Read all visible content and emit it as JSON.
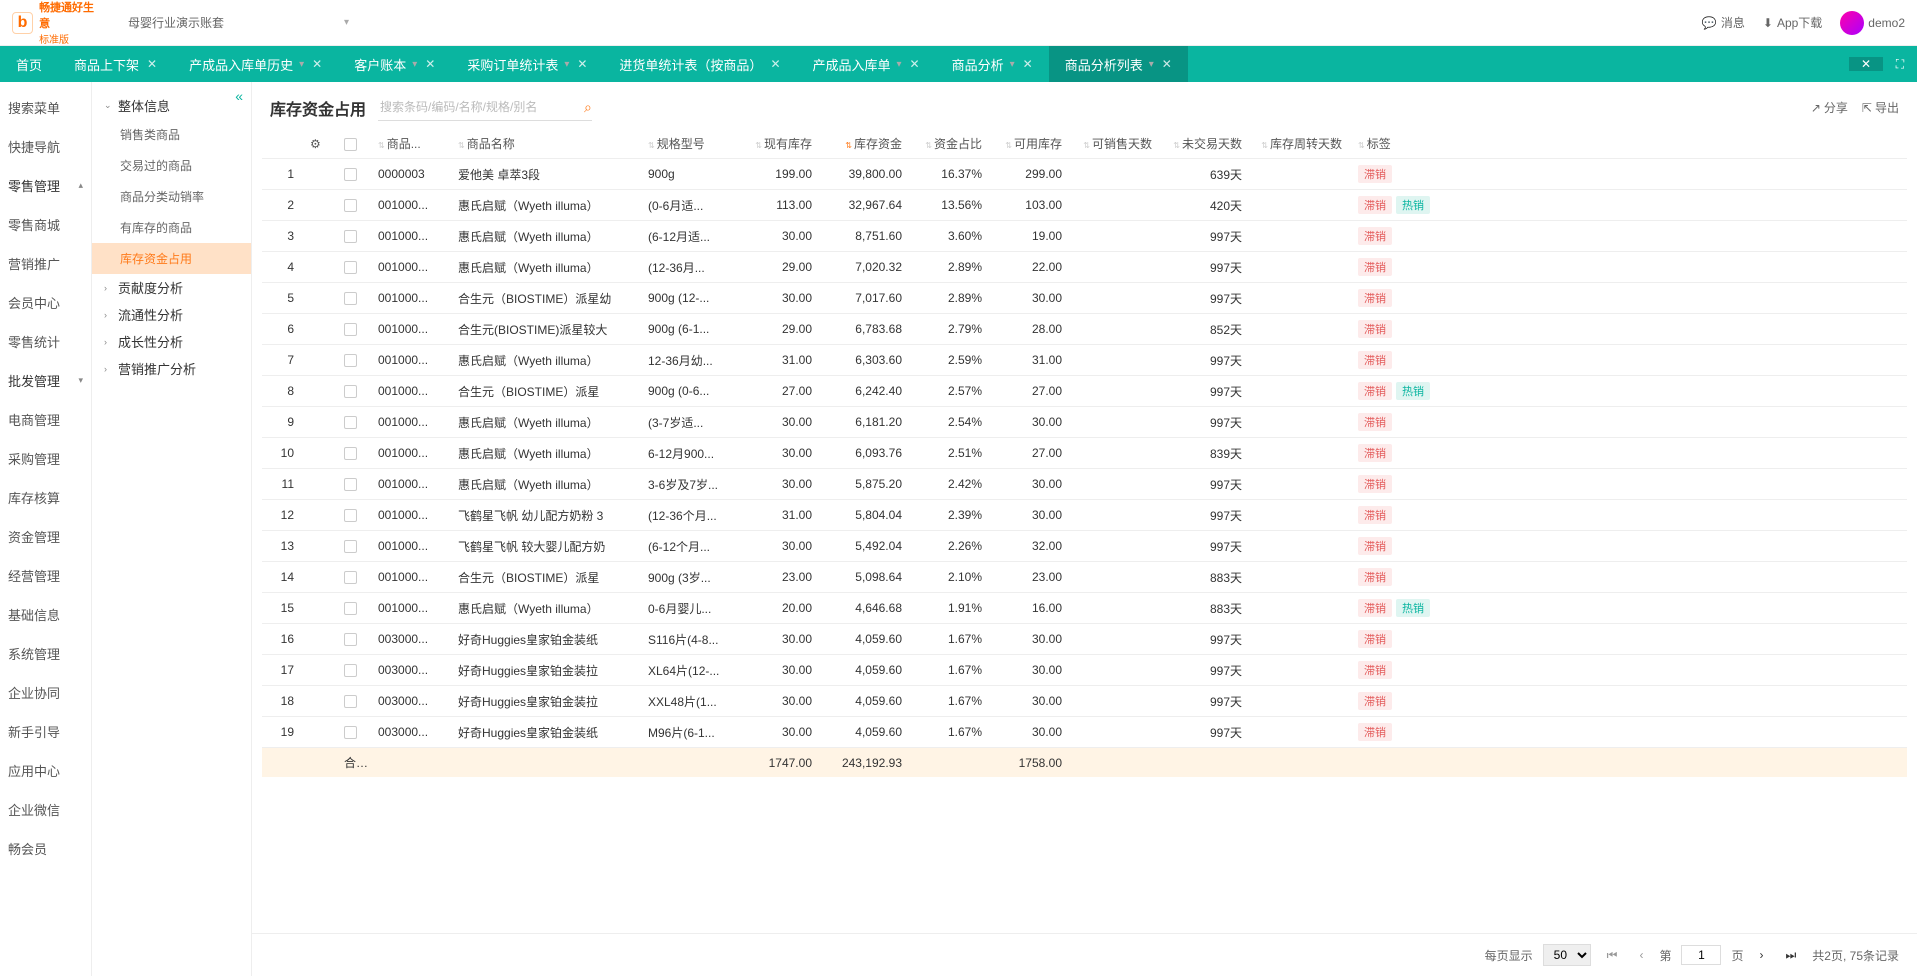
{
  "header": {
    "logo_text": "畅捷通好生意",
    "logo_sub": "标准版",
    "account": "母婴行业演示账套",
    "msg": "消息",
    "download": "App下载",
    "user": "demo2"
  },
  "tabs": [
    {
      "label": "首页",
      "closable": false
    },
    {
      "label": "商品上下架",
      "closable": true
    },
    {
      "label": "产成品入库单历史",
      "closable": true,
      "caret": true
    },
    {
      "label": "客户账本",
      "closable": true,
      "caret": true
    },
    {
      "label": "采购订单统计表",
      "closable": true,
      "caret": true
    },
    {
      "label": "进货单统计表（按商品）",
      "closable": true
    },
    {
      "label": "产成品入库单",
      "closable": true,
      "caret": true
    },
    {
      "label": "商品分析",
      "closable": true,
      "caret": true
    },
    {
      "label": "商品分析列表",
      "closable": true,
      "caret": true,
      "active": true
    }
  ],
  "leftnav": [
    {
      "label": "搜索菜单"
    },
    {
      "label": "快捷导航"
    },
    {
      "label": "零售管理",
      "arrow": "▴"
    },
    {
      "label": "零售商城"
    },
    {
      "label": "营销推广"
    },
    {
      "label": "会员中心"
    },
    {
      "label": "零售统计"
    },
    {
      "label": "批发管理",
      "arrow": "▾"
    },
    {
      "label": "电商管理"
    },
    {
      "label": "采购管理"
    },
    {
      "label": "库存核算"
    },
    {
      "label": "资金管理"
    },
    {
      "label": "经营管理"
    },
    {
      "label": "基础信息"
    },
    {
      "label": "系统管理"
    },
    {
      "label": "企业协同"
    },
    {
      "label": "新手引导"
    },
    {
      "label": "应用中心"
    },
    {
      "label": "企业微信"
    },
    {
      "label": "畅会员"
    }
  ],
  "subnav": {
    "groups": [
      {
        "label": "整体信息",
        "open": true,
        "items": [
          {
            "label": "销售类商品"
          },
          {
            "label": "交易过的商品"
          },
          {
            "label": "商品分类动销率"
          },
          {
            "label": "有库存的商品"
          },
          {
            "label": "库存资金占用",
            "active": true
          }
        ]
      },
      {
        "label": "贡献度分析",
        "open": false
      },
      {
        "label": "流通性分析",
        "open": false
      },
      {
        "label": "成长性分析",
        "open": false
      },
      {
        "label": "营销推广分析",
        "open": false
      }
    ]
  },
  "content": {
    "title": "库存资金占用",
    "search_placeholder": "搜索条码/编码/名称/规格/别名",
    "share": "分享",
    "export": "导出"
  },
  "columns": [
    "商品...",
    "商品名称",
    "规格型号",
    "现有库存",
    "库存资金",
    "资金占比",
    "可用库存",
    "可销售天数",
    "未交易天数",
    "库存周转天数",
    "标签"
  ],
  "rows": [
    {
      "idx": 1,
      "code": "0000003",
      "name": "爱他美 卓萃3段",
      "spec": "900g",
      "stock": "199.00",
      "cap": "39,800.00",
      "ratio": "16.37%",
      "avail": "299.00",
      "sell": "",
      "notrade": "639天",
      "turn": "",
      "tags": [
        "滞销"
      ]
    },
    {
      "idx": 2,
      "code": "001000...",
      "name": "惠氏启赋（Wyeth illuma）",
      "spec": "(0-6月适...",
      "stock": "113.00",
      "cap": "32,967.64",
      "ratio": "13.56%",
      "avail": "103.00",
      "sell": "",
      "notrade": "420天",
      "turn": "",
      "tags": [
        "滞销",
        "热销"
      ]
    },
    {
      "idx": 3,
      "code": "001000...",
      "name": "惠氏启赋（Wyeth illuma）",
      "spec": "(6-12月适...",
      "stock": "30.00",
      "cap": "8,751.60",
      "ratio": "3.60%",
      "avail": "19.00",
      "sell": "",
      "notrade": "997天",
      "turn": "",
      "tags": [
        "滞销"
      ]
    },
    {
      "idx": 4,
      "code": "001000...",
      "name": "惠氏启赋（Wyeth illuma）",
      "spec": "(12-36月...",
      "stock": "29.00",
      "cap": "7,020.32",
      "ratio": "2.89%",
      "avail": "22.00",
      "sell": "",
      "notrade": "997天",
      "turn": "",
      "tags": [
        "滞销"
      ]
    },
    {
      "idx": 5,
      "code": "001000...",
      "name": "合生元（BIOSTIME）派星幼",
      "spec": "900g (12-...",
      "stock": "30.00",
      "cap": "7,017.60",
      "ratio": "2.89%",
      "avail": "30.00",
      "sell": "",
      "notrade": "997天",
      "turn": "",
      "tags": [
        "滞销"
      ]
    },
    {
      "idx": 6,
      "code": "001000...",
      "name": "合生元(BIOSTIME)派星较大",
      "spec": "900g (6-1...",
      "stock": "29.00",
      "cap": "6,783.68",
      "ratio": "2.79%",
      "avail": "28.00",
      "sell": "",
      "notrade": "852天",
      "turn": "",
      "tags": [
        "滞销"
      ]
    },
    {
      "idx": 7,
      "code": "001000...",
      "name": "惠氏启赋（Wyeth illuma）",
      "spec": "12-36月幼...",
      "stock": "31.00",
      "cap": "6,303.60",
      "ratio": "2.59%",
      "avail": "31.00",
      "sell": "",
      "notrade": "997天",
      "turn": "",
      "tags": [
        "滞销"
      ]
    },
    {
      "idx": 8,
      "code": "001000...",
      "name": "合生元（BIOSTIME）派星",
      "spec": "900g (0-6...",
      "stock": "27.00",
      "cap": "6,242.40",
      "ratio": "2.57%",
      "avail": "27.00",
      "sell": "",
      "notrade": "997天",
      "turn": "",
      "tags": [
        "滞销",
        "热销"
      ]
    },
    {
      "idx": 9,
      "code": "001000...",
      "name": "惠氏启赋（Wyeth illuma）",
      "spec": "(3-7岁适...",
      "stock": "30.00",
      "cap": "6,181.20",
      "ratio": "2.54%",
      "avail": "30.00",
      "sell": "",
      "notrade": "997天",
      "turn": "",
      "tags": [
        "滞销"
      ]
    },
    {
      "idx": 10,
      "code": "001000...",
      "name": "惠氏启赋（Wyeth illuma）",
      "spec": "6-12月900...",
      "stock": "30.00",
      "cap": "6,093.76",
      "ratio": "2.51%",
      "avail": "27.00",
      "sell": "",
      "notrade": "839天",
      "turn": "",
      "tags": [
        "滞销"
      ]
    },
    {
      "idx": 11,
      "code": "001000...",
      "name": "惠氏启赋（Wyeth illuma）",
      "spec": "3-6岁及7岁...",
      "stock": "30.00",
      "cap": "5,875.20",
      "ratio": "2.42%",
      "avail": "30.00",
      "sell": "",
      "notrade": "997天",
      "turn": "",
      "tags": [
        "滞销"
      ]
    },
    {
      "idx": 12,
      "code": "001000...",
      "name": "飞鹤星飞帆 幼儿配方奶粉 3",
      "spec": "(12-36个月...",
      "stock": "31.00",
      "cap": "5,804.04",
      "ratio": "2.39%",
      "avail": "30.00",
      "sell": "",
      "notrade": "997天",
      "turn": "",
      "tags": [
        "滞销"
      ]
    },
    {
      "idx": 13,
      "code": "001000...",
      "name": "飞鹤星飞帆 较大婴儿配方奶",
      "spec": "(6-12个月...",
      "stock": "30.00",
      "cap": "5,492.04",
      "ratio": "2.26%",
      "avail": "32.00",
      "sell": "",
      "notrade": "997天",
      "turn": "",
      "tags": [
        "滞销"
      ]
    },
    {
      "idx": 14,
      "code": "001000...",
      "name": "合生元（BIOSTIME）派星",
      "spec": "900g (3岁...",
      "stock": "23.00",
      "cap": "5,098.64",
      "ratio": "2.10%",
      "avail": "23.00",
      "sell": "",
      "notrade": "883天",
      "turn": "",
      "tags": [
        "滞销"
      ]
    },
    {
      "idx": 15,
      "code": "001000...",
      "name": "惠氏启赋（Wyeth illuma）",
      "spec": "0-6月婴儿...",
      "stock": "20.00",
      "cap": "4,646.68",
      "ratio": "1.91%",
      "avail": "16.00",
      "sell": "",
      "notrade": "883天",
      "turn": "",
      "tags": [
        "滞销",
        "热销"
      ]
    },
    {
      "idx": 16,
      "code": "003000...",
      "name": "好奇Huggies皇家铂金装纸",
      "spec": "S116片(4-8...",
      "stock": "30.00",
      "cap": "4,059.60",
      "ratio": "1.67%",
      "avail": "30.00",
      "sell": "",
      "notrade": "997天",
      "turn": "",
      "tags": [
        "滞销"
      ]
    },
    {
      "idx": 17,
      "code": "003000...",
      "name": "好奇Huggies皇家铂金装拉",
      "spec": "XL64片(12-...",
      "stock": "30.00",
      "cap": "4,059.60",
      "ratio": "1.67%",
      "avail": "30.00",
      "sell": "",
      "notrade": "997天",
      "turn": "",
      "tags": [
        "滞销"
      ]
    },
    {
      "idx": 18,
      "code": "003000...",
      "name": "好奇Huggies皇家铂金装拉",
      "spec": "XXL48片(1...",
      "stock": "30.00",
      "cap": "4,059.60",
      "ratio": "1.67%",
      "avail": "30.00",
      "sell": "",
      "notrade": "997天",
      "turn": "",
      "tags": [
        "滞销"
      ]
    },
    {
      "idx": 19,
      "code": "003000...",
      "name": "好奇Huggies皇家铂金装纸",
      "spec": "M96片(6-1...",
      "stock": "30.00",
      "cap": "4,059.60",
      "ratio": "1.67%",
      "avail": "30.00",
      "sell": "",
      "notrade": "997天",
      "turn": "",
      "tags": [
        "滞销"
      ]
    }
  ],
  "totals": {
    "label": "合计:",
    "stock": "1747.00",
    "cap": "243,192.93",
    "avail": "1758.00"
  },
  "pager": {
    "per_label": "每页显示",
    "per": "50",
    "page_label_l": "第",
    "page": "1",
    "page_label_r": "页",
    "summary": "共2页, 75条记录"
  }
}
